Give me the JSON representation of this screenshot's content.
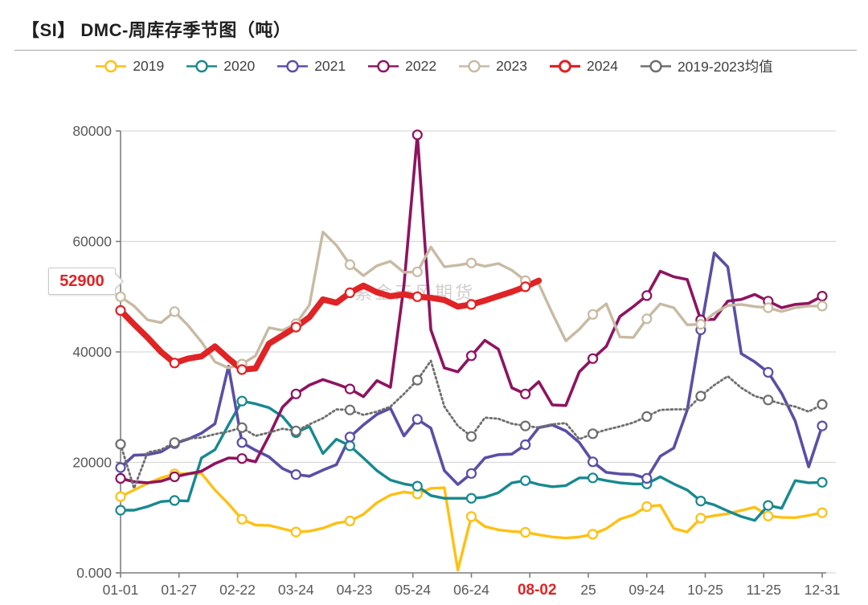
{
  "title": "【SI】 DMC-周库存季节图（吨）",
  "watermark": "紫金天风期货",
  "annotation": {
    "label": "52900",
    "value": 52900
  },
  "legend": [
    {
      "label": "2019",
      "color": "#ffc013"
    },
    {
      "label": "2020",
      "color": "#17898f"
    },
    {
      "label": "2021",
      "color": "#5a4fa5"
    },
    {
      "label": "2022",
      "color": "#8e1460"
    },
    {
      "label": "2023",
      "color": "#c8baa3"
    },
    {
      "label": "2024",
      "color": "#e02325"
    },
    {
      "label": "2019-2023均值",
      "color": "#6e6e6e"
    }
  ],
  "chart_data": {
    "type": "line",
    "title": "【SI】 DMC-周库存季节图（吨）",
    "ylabel": "",
    "xlabel": "",
    "ylim": [
      0,
      80000
    ],
    "grid": true,
    "y_axis": {
      "tick_labels": [
        "80000",
        "60000",
        "40000",
        "20000",
        "0.000"
      ],
      "tick_values": [
        80000,
        60000,
        40000,
        20000,
        0
      ]
    },
    "x_axis": {
      "tick_labels": [
        "01-01",
        "01-27",
        "02-22",
        "03-24",
        "04-23",
        "05-24",
        "06-24",
        "08-02",
        "25",
        "09-24",
        "10-25",
        "11-25",
        "12-31"
      ],
      "highlight_label": "08-02",
      "highlight_color": "#e02325"
    },
    "weeks_per_year": 52,
    "series": [
      {
        "name": "2019",
        "color": "#ffc013",
        "width": 3.4,
        "dashed": false,
        "values": [
          13800,
          15000,
          16200,
          17200,
          17900,
          18000,
          18000,
          15000,
          12500,
          9700,
          8650,
          8600,
          8000,
          7400,
          7550,
          8100,
          9000,
          9400,
          10600,
          12700,
          14100,
          14650,
          14300,
          15300,
          15400,
          500,
          10200,
          8400,
          7800,
          7500,
          7350,
          6900,
          6500,
          6300,
          6500,
          7000,
          8000,
          9700,
          10500,
          12000,
          12250,
          8050,
          7400,
          9900,
          10350,
          10700,
          11300,
          11900,
          10300,
          10050,
          10000,
          10400,
          10900
        ]
      },
      {
        "name": "2020",
        "color": "#17898f",
        "width": 3.4,
        "dashed": false,
        "values": [
          11350,
          11350,
          12000,
          12900,
          13100,
          13000,
          20800,
          22300,
          26800,
          31100,
          30600,
          29900,
          28300,
          25400,
          26500,
          21600,
          24200,
          23000,
          20800,
          18500,
          16800,
          16100,
          15700,
          14000,
          13500,
          13500,
          13500,
          13700,
          14500,
          16300,
          16700,
          16000,
          15600,
          15800,
          17200,
          17200,
          16700,
          16300,
          16100,
          16100,
          17400,
          16100,
          15000,
          13000,
          12300,
          11200,
          10200,
          9500,
          12200,
          11700,
          16700,
          16300,
          16400
        ]
      },
      {
        "name": "2021",
        "color": "#5a4fa5",
        "width": 3.6,
        "dashed": false,
        "values": [
          19050,
          21300,
          21400,
          21900,
          23400,
          24200,
          25300,
          27000,
          37400,
          23600,
          22200,
          21000,
          18900,
          17800,
          17500,
          18600,
          19600,
          24600,
          26800,
          28700,
          29800,
          24800,
          27800,
          26200,
          18500,
          16000,
          18000,
          20800,
          21400,
          21500,
          23200,
          26300,
          26800,
          25700,
          23600,
          20100,
          18200,
          17900,
          17800,
          17100,
          21100,
          22600,
          29500,
          44000,
          57900,
          55400,
          39700,
          38200,
          36300,
          32500,
          27500,
          19200,
          26600
        ]
      },
      {
        "name": "2022",
        "color": "#8e1460",
        "width": 3.6,
        "dashed": false,
        "values": [
          17100,
          16500,
          16300,
          16600,
          17400,
          17900,
          18400,
          19800,
          20800,
          20700,
          20100,
          24800,
          30000,
          32400,
          34000,
          35000,
          34200,
          33300,
          31900,
          34800,
          33600,
          52000,
          79300,
          44000,
          37100,
          36400,
          39300,
          42100,
          40500,
          33500,
          32400,
          34600,
          30400,
          30300,
          36400,
          38800,
          41000,
          46400,
          48200,
          50200,
          54600,
          53600,
          53100,
          45800,
          45900,
          49200,
          49500,
          50400,
          49200,
          48000,
          48600,
          48800,
          50100
        ]
      },
      {
        "name": "2023",
        "color": "#c8baa3",
        "width": 3.4,
        "dashed": false,
        "values": [
          50000,
          48300,
          45800,
          45300,
          47300,
          44800,
          41800,
          38200,
          37100,
          37800,
          39300,
          44400,
          43900,
          45100,
          48500,
          61700,
          59300,
          55800,
          53800,
          55600,
          56400,
          54400,
          54500,
          59000,
          55400,
          55700,
          56100,
          55500,
          56000,
          54800,
          52900,
          52300,
          47000,
          42000,
          44100,
          46800,
          48700,
          42700,
          42600,
          46000,
          48700,
          48000,
          44900,
          45000,
          47000,
          48400,
          48600,
          48200,
          48000,
          47300,
          48000,
          48300,
          48300
        ]
      },
      {
        "name": "2019-2023均值",
        "color": "#6e6e6e",
        "width": 2.8,
        "dashed": true,
        "values": [
          23300,
          15300,
          21800,
          22300,
          23600,
          24300,
          24500,
          25100,
          25600,
          26300,
          24800,
          25400,
          26100,
          25700,
          26900,
          28000,
          29600,
          29500,
          28600,
          29200,
          30100,
          32400,
          34900,
          38400,
          30100,
          26600,
          24700,
          28100,
          27900,
          27000,
          26600,
          26300,
          26900,
          27100,
          24200,
          25200,
          25900,
          26500,
          27200,
          28300,
          29500,
          29600,
          29600,
          32000,
          34000,
          35600,
          33500,
          32000,
          31300,
          30600,
          30100,
          29200,
          30500
        ]
      },
      {
        "name": "2024",
        "color": "#e02325",
        "width": 7.5,
        "dashed": false,
        "values": [
          47500,
          45000,
          42600,
          40000,
          38000,
          38800,
          39200,
          41000,
          38800,
          36800,
          37000,
          41500,
          43000,
          44500,
          46300,
          49500,
          48900,
          50700,
          52000,
          50800,
          50100,
          50400,
          50000,
          49800,
          49400,
          48200,
          48600,
          49300,
          50100,
          50900,
          51800,
          52900
        ]
      }
    ]
  }
}
